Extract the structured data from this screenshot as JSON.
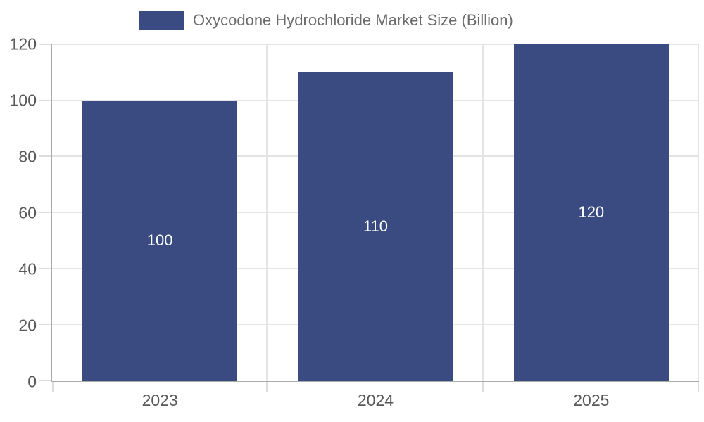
{
  "legend": {
    "label": "Oxycodone Hydrochloride Market Size (Billion)"
  },
  "chart_data": {
    "type": "bar",
    "title": "Oxycodone Hydrochloride Market Size (Billion)",
    "categories": [
      "2023",
      "2024",
      "2025"
    ],
    "series": [
      {
        "name": "Oxycodone Hydrochloride Market Size (Billion)",
        "values": [
          100,
          110,
          120
        ]
      }
    ],
    "bar_labels": [
      "100",
      "110",
      "120"
    ],
    "xlabel": "",
    "ylabel": "",
    "ylim": [
      0,
      120
    ],
    "yticks": [
      0,
      20,
      40,
      60,
      80,
      100,
      120
    ],
    "grid": true,
    "legend_position": "top",
    "colors": {
      "bar": "#394B80",
      "bar_label": "#FFFFFF",
      "gridline": "#E4E4E4",
      "tick_mark": "#DCDCDC",
      "axis_line": "#AAAAAA",
      "tick_label": "#585858",
      "legend_text": "#6B6B6B"
    }
  }
}
